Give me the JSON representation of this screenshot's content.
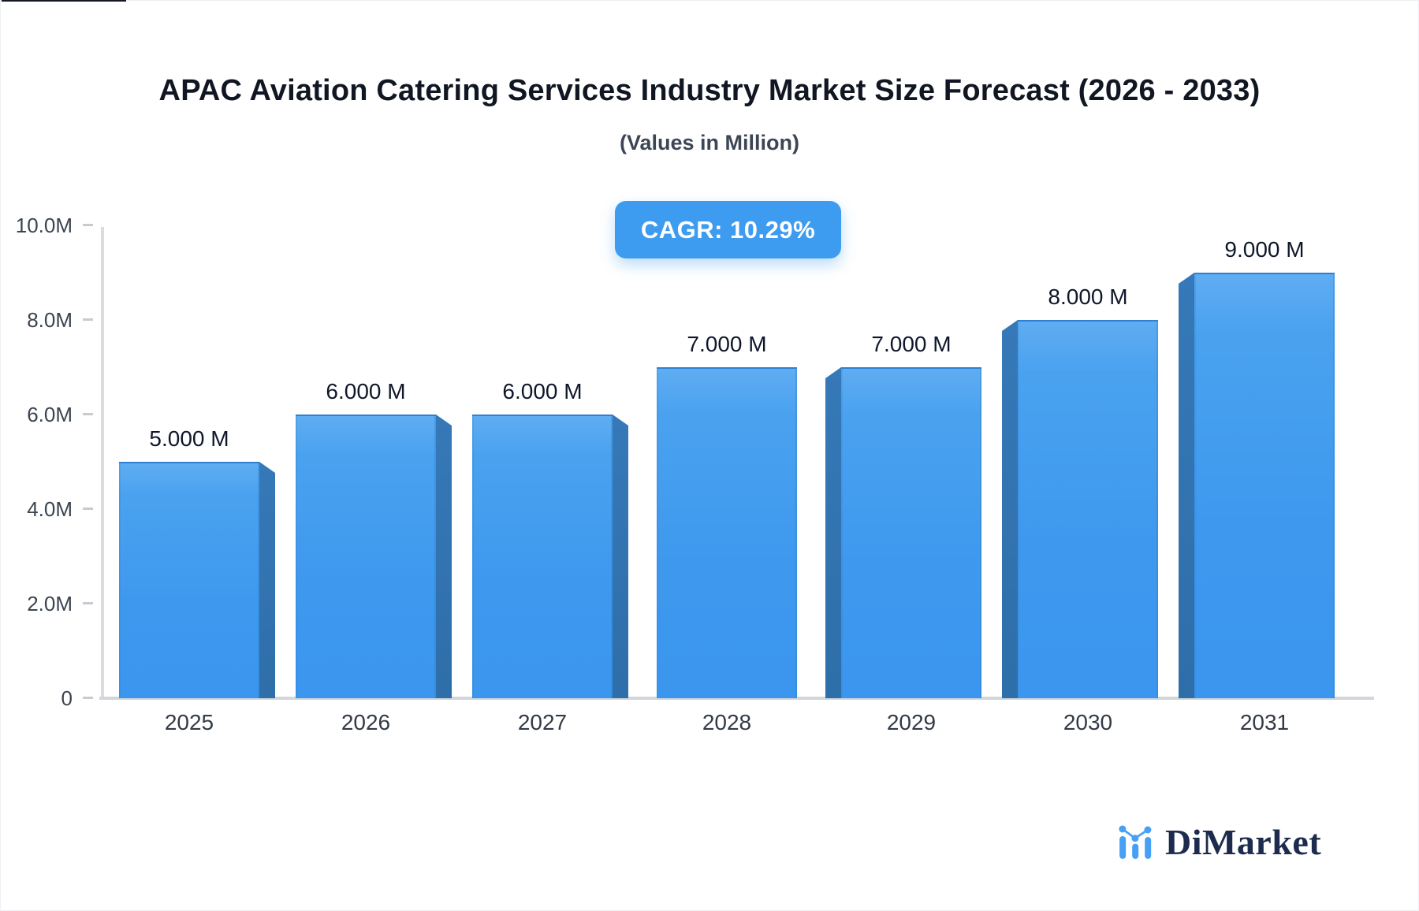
{
  "header": {
    "title": "APAC Aviation Catering Services Industry Market Size Forecast (2026 - 2033)",
    "subtitle": "(Values in Million)",
    "cagr_badge": "CAGR: 10.29%"
  },
  "branding": {
    "name": "DiMarket",
    "icon": "bar-line-chart-logo-icon",
    "icon_color": "#47a0f4",
    "text_color": "#1d2c4e"
  },
  "colors": {
    "bar_face": "#3e98ee",
    "bar_side": "#31719f",
    "badge_bg": "#3d9bf0",
    "axis_line": "#dadce0",
    "baseline": "#d2d5d9"
  },
  "chart_data": {
    "type": "bar",
    "title": "APAC Aviation Catering Services Industry Market Size Forecast (2026 - 2033)",
    "subtitle": "(Values in Million)",
    "cagr_pct": 10.29,
    "categories": [
      "2025",
      "2026",
      "2027",
      "2028",
      "2029",
      "2030",
      "2031"
    ],
    "values": [
      5,
      6,
      6,
      7,
      7,
      8,
      9
    ],
    "value_labels": [
      "5.000 M",
      "6.000 M",
      "6.000 M",
      "7.000 M",
      "7.000 M",
      "8.000 M",
      "9.000 M"
    ],
    "unit": "Million",
    "xlabel": "",
    "ylabel": "",
    "ylim": [
      0,
      10
    ],
    "yticks": [
      {
        "label": "0",
        "value": 0
      },
      {
        "label": "2.0M",
        "value": 2
      },
      {
        "label": "4.0M",
        "value": 4
      },
      {
        "label": "6.0M",
        "value": 6
      },
      {
        "label": "8.0M",
        "value": 8
      },
      {
        "label": "10.0M",
        "value": 10
      }
    ],
    "grid": false,
    "legend_position": "none",
    "bar_style": "3d-extruded"
  }
}
